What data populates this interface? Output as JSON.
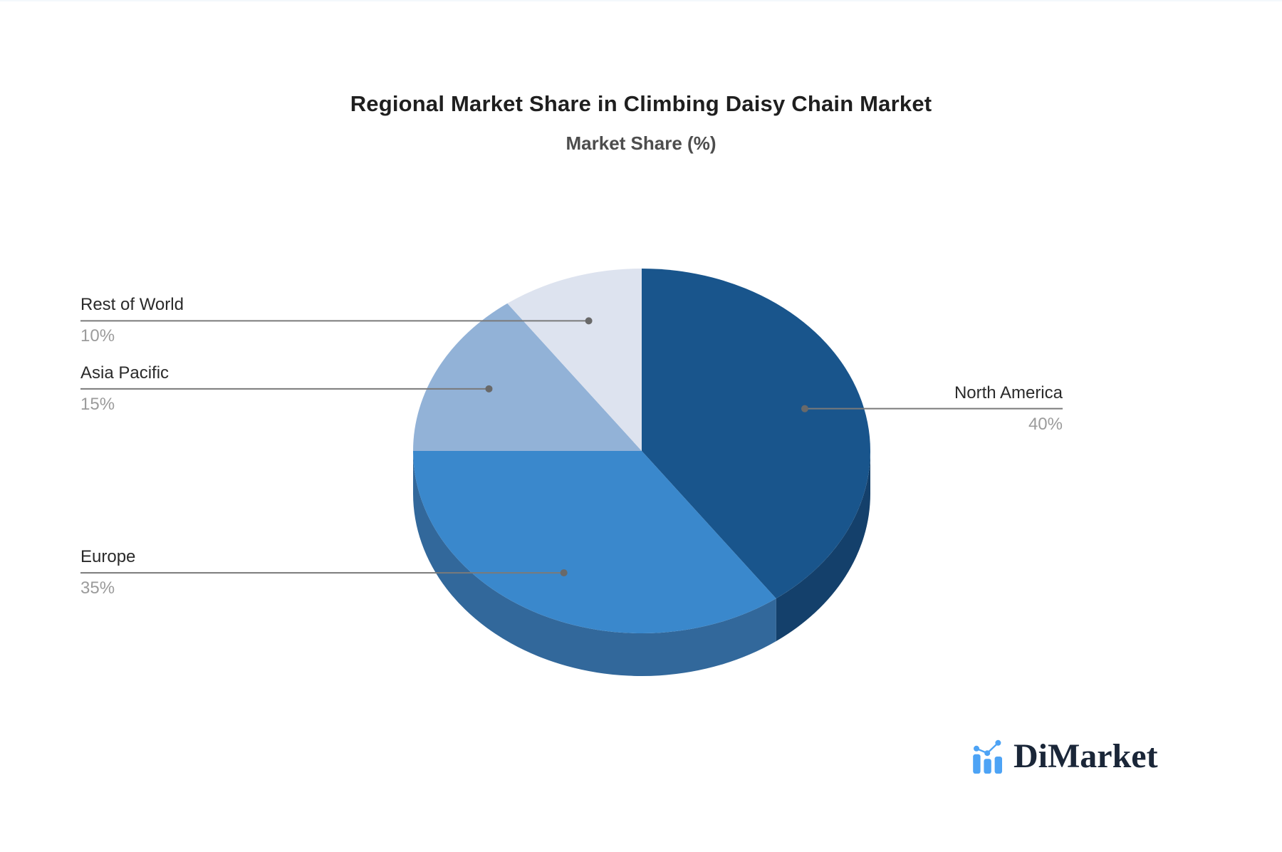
{
  "page": {
    "background": "#ffffff",
    "top_edge_color": "#f4f8fc"
  },
  "chart_data": {
    "type": "pie",
    "style": "3d-pie",
    "title": "Regional Market Share in Climbing Daisy Chain Market",
    "subtitle": "Market Share (%)",
    "unit": "%",
    "direction": "clockwise",
    "start_angle_deg": 0,
    "legend": "none",
    "series": [
      {
        "label": "North America",
        "value": 40,
        "display": "40%",
        "color": "#19558C",
        "side_color": "#14406B"
      },
      {
        "label": "Europe",
        "value": 35,
        "display": "35%",
        "color": "#3A88CC",
        "side_color": "#32689B"
      },
      {
        "label": "Asia Pacific",
        "value": 15,
        "display": "15%",
        "color": "#92B2D7",
        "side_color": "#7397BE"
      },
      {
        "label": "Rest of World",
        "value": 10,
        "display": "10%",
        "color": "#DDE3EF",
        "side_color": "#B9C4D6"
      }
    ],
    "label_style": {
      "name_color": "#2a2a2a",
      "value_color": "#9b9b9b",
      "leader_line_color": "#7a7a7a",
      "leader_dot_color": "#696969"
    }
  },
  "branding": {
    "logo_text": "DiMarket",
    "logo_icon": "bar-line-chart-icon",
    "icon_color": "#4DA3F5",
    "text_color": "#1A2638"
  }
}
